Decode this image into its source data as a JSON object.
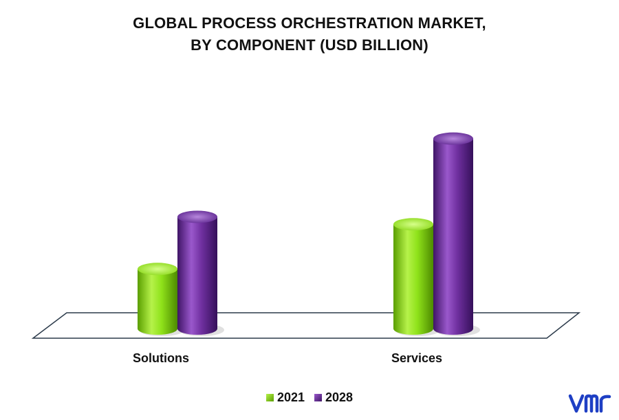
{
  "chart_data": {
    "type": "bar",
    "title_line1": "GLOBAL PROCESS ORCHESTRATION MARKET,",
    "title_line2": "BY COMPONENT (USD BILLION)",
    "categories": [
      "Solutions",
      "Services"
    ],
    "series": [
      {
        "name": "2021",
        "values": [
          1.6,
          2.8
        ],
        "color": "#8fe21a"
      },
      {
        "name": "2028",
        "values": [
          3.0,
          5.1
        ],
        "color": "#7030a0"
      }
    ],
    "ylim": [
      0,
      5.5
    ],
    "legend_position": "bottom",
    "grid": false
  },
  "brand": {
    "logo_icon": "vmr-logo-icon",
    "logo_color": "#1e3fc4"
  }
}
